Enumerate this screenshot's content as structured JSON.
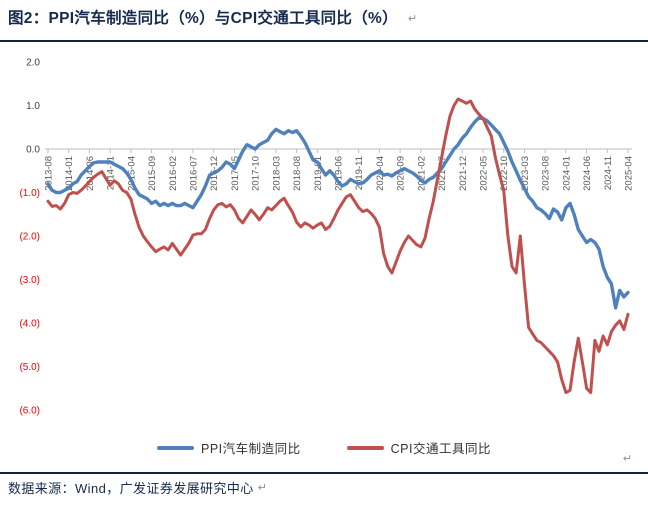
{
  "title": {
    "text": "图2：PPI汽车制造同比（%）与CPI交通工具同比（%）",
    "paragraph_mark": "↵"
  },
  "footer": {
    "source_text": "数据来源：Wind，广发证券发展研究中心",
    "paragraph_mark": "↵"
  },
  "legend": {
    "items": [
      {
        "label": "PPI汽车制造同比",
        "color": "#4F81BD"
      },
      {
        "label": "CPI交通工具同比",
        "color": "#C0504D"
      }
    ]
  },
  "colors": {
    "ppi_line": "#4F81BD",
    "cpi_line": "#C0504D",
    "axis_line": "#BFBFBF",
    "x_tick_text": "#595959",
    "y_tick_text_positive": "#404040",
    "y_tick_text_negative": "#FF0000",
    "title_navy": "#152A4E"
  },
  "chart_data": {
    "type": "line",
    "title": "PPI汽车制造同比（%）与CPI交通工具同比（%）",
    "x_start": "2013-08",
    "x_end": "2025-04",
    "x_interval": "monthly",
    "x_tick_labels": [
      "2013-08",
      "2014-01",
      "2014-06",
      "2014-11",
      "2015-04",
      "2015-09",
      "2016-02",
      "2016-07",
      "2016-12",
      "2017-05",
      "2017-10",
      "2018-03",
      "2018-08",
      "2019-01",
      "2019-06",
      "2019-11",
      "2020-04",
      "2020-09",
      "2021-02",
      "2021-07",
      "2021-12",
      "2022-05",
      "2022-10",
      "2023-03",
      "2023-08",
      "2024-01",
      "2024-06",
      "2024-11",
      "2025-04"
    ],
    "x_tick_every": 5,
    "y_tick_labels": [
      "2.0",
      "1.0",
      "0.0",
      "(1.0)",
      "(2.0)",
      "(3.0)",
      "(4.0)",
      "(5.0)",
      "(6.0)"
    ],
    "y_tick_values": [
      2,
      1,
      0,
      -1,
      -2,
      -3,
      -4,
      -5,
      -6
    ],
    "ylim": [
      -6.4,
      2.2
    ],
    "grid": "zero-axis-only",
    "legend_position": "bottom",
    "series": [
      {
        "name": "PPI汽车制造同比",
        "color": "#4F81BD",
        "values": [
          -0.8,
          -0.95,
          -1.0,
          -1.0,
          -0.95,
          -0.9,
          -0.8,
          -0.75,
          -0.6,
          -0.5,
          -0.4,
          -0.32,
          -0.3,
          -0.3,
          -0.3,
          -0.3,
          -0.35,
          -0.4,
          -0.45,
          -0.55,
          -0.7,
          -0.9,
          -1.05,
          -1.1,
          -1.15,
          -1.25,
          -1.2,
          -1.3,
          -1.25,
          -1.3,
          -1.25,
          -1.3,
          -1.3,
          -1.25,
          -1.3,
          -1.35,
          -1.2,
          -1.05,
          -0.85,
          -0.6,
          -0.55,
          -0.5,
          -0.42,
          -0.3,
          -0.35,
          -0.45,
          -0.25,
          -0.05,
          0.1,
          0.05,
          0.0,
          0.1,
          0.15,
          0.2,
          0.35,
          0.45,
          0.4,
          0.35,
          0.42,
          0.38,
          0.42,
          0.3,
          0.15,
          -0.05,
          -0.25,
          -0.3,
          -0.45,
          -0.6,
          -0.5,
          -0.6,
          -0.75,
          -0.85,
          -0.8,
          -0.7,
          -0.75,
          -0.8,
          -0.78,
          -0.7,
          -0.6,
          -0.55,
          -0.5,
          -0.6,
          -0.58,
          -0.62,
          -0.55,
          -0.5,
          -0.45,
          -0.5,
          -0.55,
          -0.62,
          -0.72,
          -0.78,
          -0.7,
          -0.65,
          -0.55,
          -0.45,
          -0.3,
          -0.15,
          0.0,
          0.1,
          0.25,
          0.35,
          0.5,
          0.62,
          0.72,
          0.7,
          0.65,
          0.55,
          0.45,
          0.35,
          0.15,
          -0.05,
          -0.3,
          -0.5,
          -0.72,
          -0.9,
          -1.1,
          -1.2,
          -1.35,
          -1.4,
          -1.48,
          -1.6,
          -1.38,
          -1.45,
          -1.63,
          -1.35,
          -1.25,
          -1.5,
          -1.85,
          -2.0,
          -2.15,
          -2.08,
          -2.15,
          -2.3,
          -2.7,
          -2.95,
          -3.1,
          -3.65,
          -3.25,
          -3.4,
          -3.3
        ]
      },
      {
        "name": "CPI交通工具同比",
        "color": "#C0504D",
        "values": [
          -1.2,
          -1.32,
          -1.3,
          -1.38,
          -1.25,
          -1.05,
          -1.0,
          -1.02,
          -0.95,
          -0.85,
          -0.75,
          -0.65,
          -0.58,
          -0.52,
          -0.68,
          -0.83,
          -0.73,
          -0.8,
          -0.95,
          -1.0,
          -1.15,
          -1.5,
          -1.8,
          -2.0,
          -2.13,
          -2.25,
          -2.36,
          -2.3,
          -2.25,
          -2.32,
          -2.17,
          -2.3,
          -2.44,
          -2.3,
          -2.16,
          -1.98,
          -1.95,
          -1.95,
          -1.85,
          -1.6,
          -1.4,
          -1.28,
          -1.25,
          -1.33,
          -1.28,
          -1.4,
          -1.6,
          -1.7,
          -1.55,
          -1.4,
          -1.5,
          -1.63,
          -1.5,
          -1.35,
          -1.4,
          -1.3,
          -1.2,
          -1.13,
          -1.3,
          -1.45,
          -1.68,
          -1.79,
          -1.7,
          -1.75,
          -1.82,
          -1.75,
          -1.7,
          -1.85,
          -1.78,
          -1.6,
          -1.4,
          -1.25,
          -1.1,
          -1.05,
          -1.2,
          -1.35,
          -1.44,
          -1.4,
          -1.48,
          -1.6,
          -1.8,
          -2.4,
          -2.7,
          -2.85,
          -2.6,
          -2.35,
          -2.15,
          -2.0,
          -2.1,
          -2.2,
          -2.25,
          -2.05,
          -1.6,
          -1.2,
          -0.7,
          -0.2,
          0.3,
          0.75,
          1.0,
          1.15,
          1.1,
          1.05,
          1.1,
          0.92,
          0.8,
          0.7,
          0.5,
          0.3,
          -0.2,
          -0.6,
          -0.95,
          -2.0,
          -2.7,
          -2.85,
          -2.0,
          -3.1,
          -4.1,
          -4.25,
          -4.4,
          -4.45,
          -4.55,
          -4.65,
          -4.75,
          -4.9,
          -5.3,
          -5.6,
          -5.55,
          -4.9,
          -4.35,
          -4.9,
          -5.5,
          -5.6,
          -4.4,
          -4.65,
          -4.3,
          -4.5,
          -4.2,
          -4.05,
          -3.95,
          -4.15,
          -3.8
        ]
      }
    ]
  }
}
